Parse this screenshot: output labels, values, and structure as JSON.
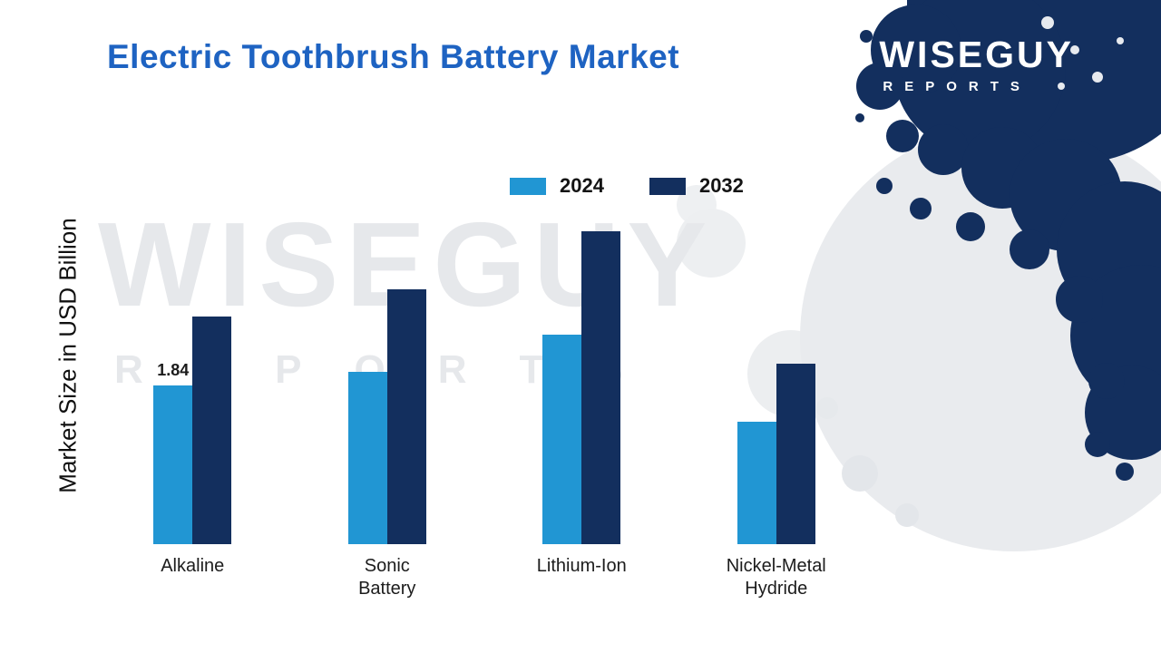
{
  "page": {
    "title": "Electric Toothbrush Battery Market",
    "title_color": "#1e63c2"
  },
  "brand": {
    "name": "WISEGUY",
    "subtitle": "REPORTS"
  },
  "watermark": {
    "name": "WISEGUY",
    "subtitle": "REPORTS"
  },
  "chart_data": {
    "type": "bar",
    "title": "Electric Toothbrush Battery Market",
    "ylabel": "Market Size in USD Billion",
    "xlabel": "",
    "categories": [
      "Alkaline",
      "Sonic Battery",
      "Lithium-Ion",
      "Nickel-Metal Hydride"
    ],
    "category_label_lines": [
      [
        "Alkaline"
      ],
      [
        "Sonic",
        "Battery"
      ],
      [
        "Lithium-Ion"
      ],
      [
        "Nickel-Metal",
        "Hydride"
      ]
    ],
    "series": [
      {
        "name": "2024",
        "color": "#2196d3",
        "values": [
          1.84,
          2.0,
          2.43,
          1.42
        ]
      },
      {
        "name": "2032",
        "color": "#132f5e",
        "values": [
          2.64,
          2.96,
          3.63,
          2.09
        ]
      }
    ],
    "ylim": [
      0,
      4
    ],
    "grid": false,
    "legend_position": "top",
    "annotations": [
      {
        "series": "2024",
        "category": "Alkaline",
        "text": "1.84"
      }
    ]
  }
}
